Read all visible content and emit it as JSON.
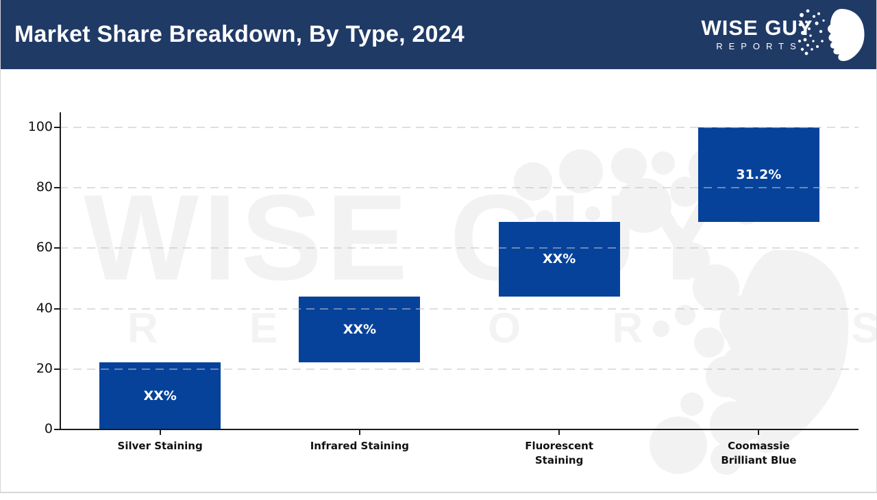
{
  "header": {
    "title": "Market Share Breakdown, By Type, 2024",
    "brand": {
      "line1": "WISE GUY",
      "line2": "REPORTS"
    }
  },
  "watermark": {
    "line1": "WISE GUY",
    "line2": "R E P O R T S"
  },
  "colors": {
    "header_bg": "#203a66",
    "bar": "#06429a",
    "grid": "#e2e2e2",
    "axis": "#1a1a1a",
    "bar_label": "#ffffff",
    "watermark": "#f2f2f2"
  },
  "chart_data": {
    "type": "bar",
    "subtype": "floating-waterfall",
    "title": "Market Share Breakdown, By Type, 2024",
    "categories": [
      "Silver Staining",
      "Infrared Staining",
      "Fluorescent Staining",
      "Coomassie Brilliant Blue"
    ],
    "category_lines": [
      [
        "Silver Staining"
      ],
      [
        "Infrared Staining"
      ],
      [
        "Fluorescent",
        "Staining"
      ],
      [
        "Coomassie",
        "Brilliant Blue"
      ]
    ],
    "series": [
      {
        "name": "Market Share (%)",
        "segments": [
          {
            "category": "Silver Staining",
            "start": 0,
            "end": 22.3,
            "label": "XX%"
          },
          {
            "category": "Infrared Staining",
            "start": 22.3,
            "end": 43.9,
            "label": "XX%"
          },
          {
            "category": "Fluorescent Staining",
            "start": 43.9,
            "end": 68.8,
            "label": "XX%"
          },
          {
            "category": "Coomassie Brilliant Blue",
            "start": 68.8,
            "end": 100,
            "label": "31.2%"
          }
        ]
      }
    ],
    "xlabel": "",
    "ylabel": "",
    "ylim": [
      0,
      100
    ],
    "yticks": [
      0,
      20,
      40,
      60,
      80,
      100
    ],
    "grid": "horizontal-dashed",
    "legend": false
  }
}
